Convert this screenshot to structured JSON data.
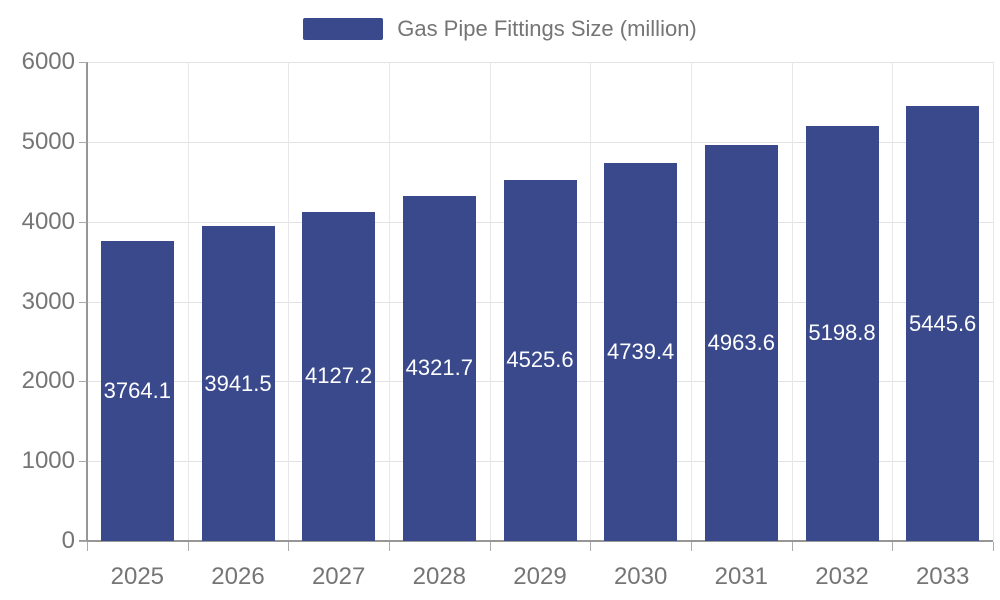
{
  "legend": {
    "label": "Gas Pipe Fittings Size (million)"
  },
  "colors": {
    "bar": "#39498C",
    "axis_text": "#757575",
    "legend_text": "#757575",
    "grid_line_h": "#E3E3E3",
    "grid_line_v": "#E8E8E8",
    "axis_line": "#979797",
    "value_text": "#FFFFFF",
    "background": "#FFFFFF"
  },
  "chart_data": {
    "type": "bar",
    "title": "",
    "xlabel": "",
    "ylabel": "",
    "categories": [
      "2025",
      "2026",
      "2027",
      "2028",
      "2029",
      "2030",
      "2031",
      "2032",
      "2033"
    ],
    "series": [
      {
        "name": "Gas Pipe Fittings Size (million)",
        "values": [
          3764.1,
          3941.5,
          4127.2,
          4321.7,
          4525.6,
          4739.4,
          4963.6,
          5198.8,
          5445.6
        ]
      }
    ],
    "value_labels": [
      "3764.1",
      "3941.5",
      "4127.2",
      "4321.7",
      "4525.6",
      "4739.4",
      "4963.6",
      "5198.8",
      "5445.6"
    ],
    "ylim": [
      0,
      6000
    ],
    "yticks": [
      0,
      1000,
      2000,
      3000,
      4000,
      5000,
      6000
    ],
    "grid": true,
    "legend_position": "top",
    "value_label_position": "inside-middle"
  }
}
